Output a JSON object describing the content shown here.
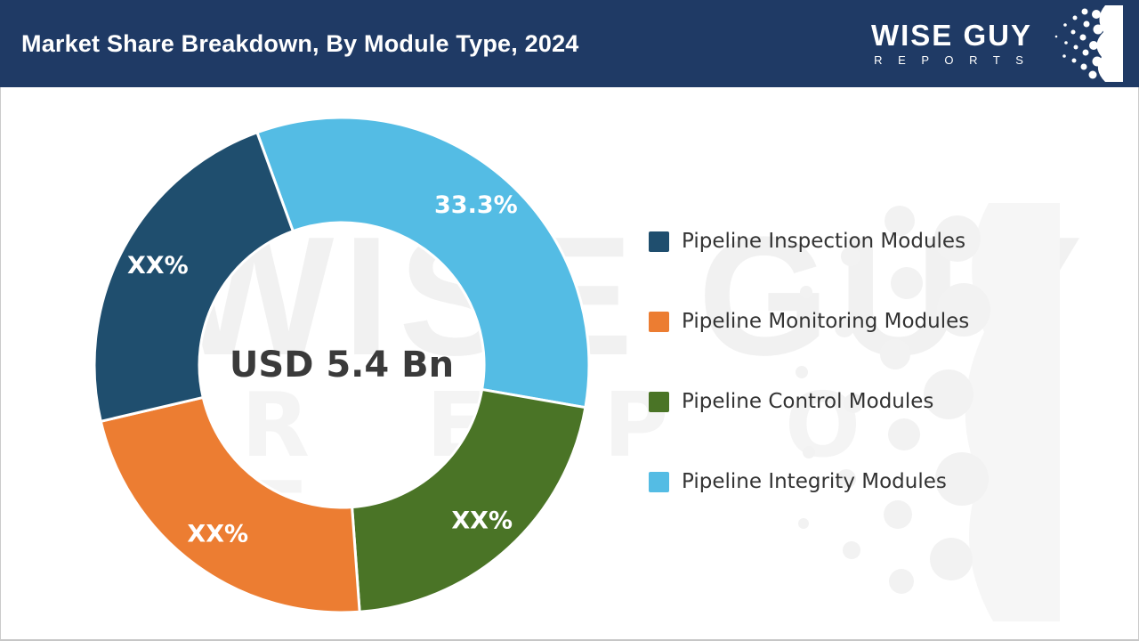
{
  "header": {
    "title": "Market Share Breakdown, By Module Type, 2024",
    "bg_color": "#1f3a65",
    "logo": {
      "line1": "WISE GUY",
      "line2": "R E P O R T S"
    }
  },
  "watermark": {
    "line1": "WISE GUY",
    "line2": "R E P O R T S"
  },
  "chart_data": {
    "type": "pie",
    "subtype": "donut",
    "title": "Market Share Breakdown, By Module Type, 2024",
    "center_label": "USD 5.4 Bn",
    "start_angle_deg": -110,
    "legend_position": "right",
    "slices": [
      {
        "label": "Pipeline Integrity Modules",
        "display_value": "33.3%",
        "pct": 33.3,
        "color": "#54bce4"
      },
      {
        "label": "Pipeline Control Modules",
        "display_value": "XX%",
        "pct": 21.1,
        "color": "#4a7426"
      },
      {
        "label": "Pipeline Monitoring Modules",
        "display_value": "XX%",
        "pct": 22.5,
        "color": "#ec7d32"
      },
      {
        "label": "Pipeline Inspection Modules",
        "display_value": "XX%",
        "pct": 23.1,
        "color": "#1f4e6e"
      }
    ],
    "legend": [
      {
        "label": "Pipeline Inspection Modules",
        "color": "#1f4e6e"
      },
      {
        "label": "Pipeline Monitoring Modules",
        "color": "#ec7d32"
      },
      {
        "label": "Pipeline Control Modules",
        "color": "#4a7426"
      },
      {
        "label": "Pipeline Integrity Modules",
        "color": "#54bce4"
      }
    ]
  }
}
